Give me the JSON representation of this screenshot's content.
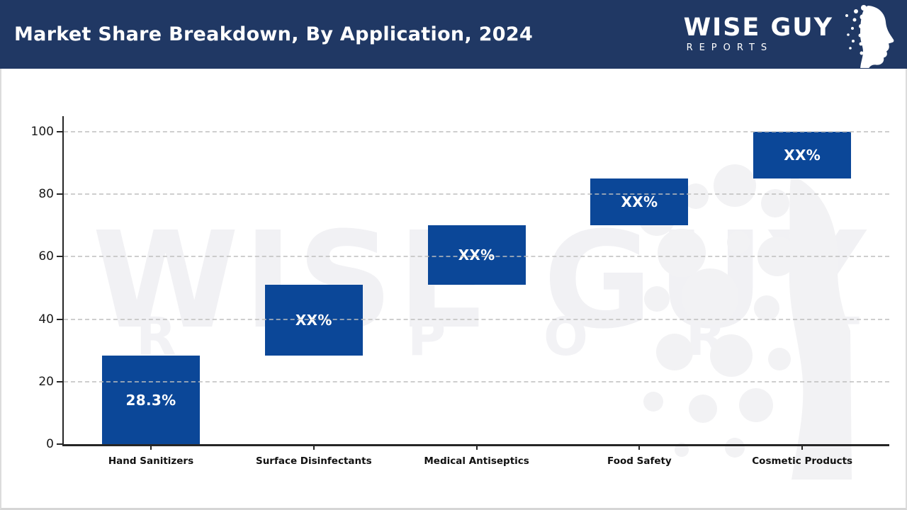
{
  "header": {
    "title": "Market Share Breakdown, By Application, 2024",
    "logo": {
      "line1": "WISE GUY",
      "line2": "REPORTS"
    }
  },
  "watermark": {
    "line1": "WISE GUY",
    "line2": "REPORTS"
  },
  "colors": {
    "header_bg": "#203864",
    "bar_blue": "#0b4798",
    "axis": "#262626",
    "grid": "#d9d9d9",
    "bar_label_text": "#ffffff",
    "tick_text": "#1a1a1a",
    "watermark": "#f1f1f4"
  },
  "chart_data": {
    "type": "bar",
    "subtype": "waterfall",
    "title": "Market Share Breakdown, By Application, 2024",
    "categories": [
      "Hand Sanitizers",
      "Surface Disinfectants",
      "Medical Antiseptics",
      "Food Safety",
      "Cosmetic Products"
    ],
    "segments": [
      {
        "category": "Hand Sanitizers",
        "start": 0,
        "end": 28.3,
        "label": "28.3%"
      },
      {
        "category": "Surface Disinfectants",
        "start": 28.3,
        "end": 51,
        "label": "XX%"
      },
      {
        "category": "Medical Antiseptics",
        "start": 51,
        "end": 70,
        "label": "XX%"
      },
      {
        "category": "Food Safety",
        "start": 70,
        "end": 85,
        "label": "XX%"
      },
      {
        "category": "Cosmetic Products",
        "start": 85,
        "end": 100,
        "label": "XX%"
      }
    ],
    "yticks": [
      0,
      20,
      40,
      60,
      80,
      100
    ],
    "ylim": [
      0,
      105
    ],
    "xlabel": "",
    "ylabel": "",
    "grid": true,
    "grid_style": "dashed",
    "legend": null
  }
}
